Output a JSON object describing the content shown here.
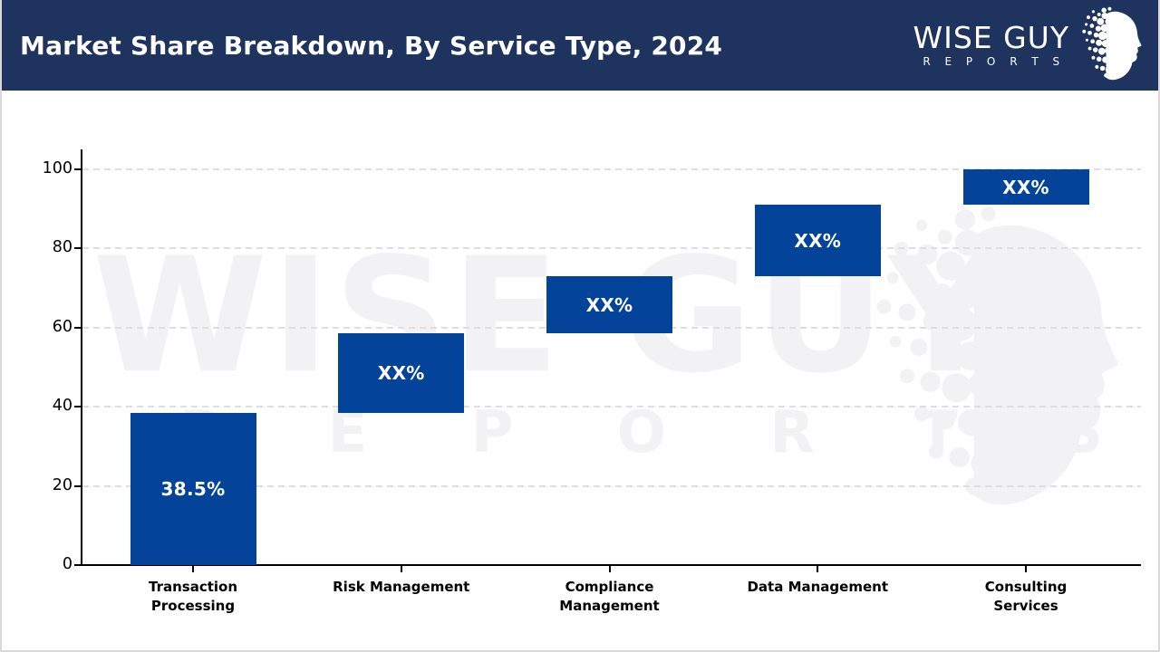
{
  "header": {
    "title": "Market Share Breakdown, By Service Type, 2024",
    "logo": {
      "name": "WISE GUY",
      "subtitle": "R E P O R T S"
    }
  },
  "watermark": {
    "name": "WISE GUY",
    "subtitle": "R E P O R T S"
  },
  "colors": {
    "header_bg": "#1e335e",
    "bar": "#04439a",
    "grid": "#dedede",
    "axis": "#000000",
    "bar_label": "#ffffff",
    "watermark": "#f2f2f4",
    "border": "#d9d9d9"
  },
  "chart_data": {
    "type": "bar",
    "variant": "waterfall",
    "title": "Market Share Breakdown, By Service Type, 2024",
    "categories": [
      "Transaction Processing",
      "Risk Management",
      "Compliance Management",
      "Data Management",
      "Consulting Services"
    ],
    "tick_label_lines": [
      [
        "Transaction",
        "Processing"
      ],
      [
        "Risk Management"
      ],
      [
        "Compliance",
        "Management"
      ],
      [
        "Data Management"
      ],
      [
        "Consulting",
        "Services"
      ]
    ],
    "segments": [
      {
        "category": "Transaction Processing",
        "start": 0,
        "end": 38.5,
        "label": "38.5%"
      },
      {
        "category": "Risk Management",
        "start": 38.5,
        "end": 58.5,
        "label": "XX%"
      },
      {
        "category": "Compliance Management",
        "start": 58.5,
        "end": 73,
        "label": "XX%"
      },
      {
        "category": "Data Management",
        "start": 73,
        "end": 91,
        "label": "XX%"
      },
      {
        "category": "Consulting Services",
        "start": 91,
        "end": 100,
        "label": "XX%"
      }
    ],
    "xlabel": "",
    "ylabel": "",
    "ylim": [
      0,
      100
    ],
    "yticks": [
      0,
      20,
      40,
      60,
      80,
      100
    ],
    "grid": "horizontal-dashed",
    "legend": "none"
  }
}
